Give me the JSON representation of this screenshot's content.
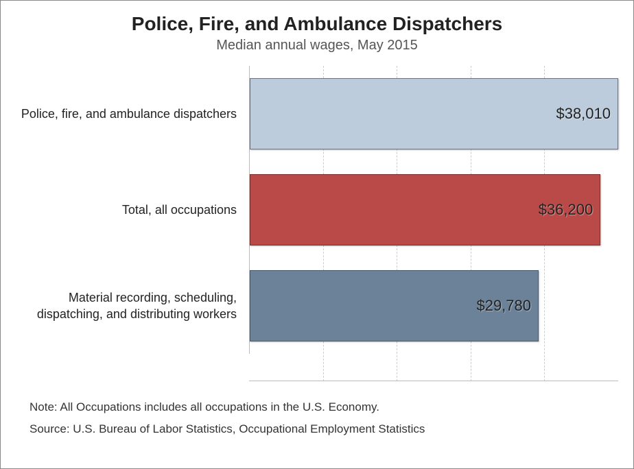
{
  "title": "Police, Fire, and Ambulance Dispatchers",
  "subtitle": "Median annual wages, May 2015",
  "title_fontsize": 28,
  "subtitle_fontsize": 20,
  "label_fontsize": 18,
  "value_fontsize": 22,
  "note_fontsize": 17,
  "background_color": "#ffffff",
  "border_color": "#888888",
  "grid_color": "#cccccc",
  "text_color": "#222222",
  "chart": {
    "type": "bar-horizontal",
    "xlim": [
      0,
      38010
    ],
    "grid_positions_pct": [
      20,
      40,
      60,
      80
    ],
    "bars": [
      {
        "label": "Police, fire, and ambulance dispatchers",
        "value": 38010,
        "value_text": "$38,010",
        "width_pct": 100,
        "color": "#bcccdc",
        "border_color": "#6b7280"
      },
      {
        "label": "Total, all occupations",
        "value": 36200,
        "value_text": "$36,200",
        "width_pct": 95.2,
        "color": "#b94a48",
        "border_color": "#7a2e2d"
      },
      {
        "label": "Material recording, scheduling, dispatching, and distributing workers",
        "value": 29780,
        "value_text": "$29,780",
        "width_pct": 78.4,
        "color": "#6b8299",
        "border_color": "#4a5a6a"
      }
    ]
  },
  "note": "Note: All Occupations includes all occupations in the U.S. Economy.",
  "source": "Source: U.S. Bureau of Labor Statistics, Occupational Employment Statistics"
}
